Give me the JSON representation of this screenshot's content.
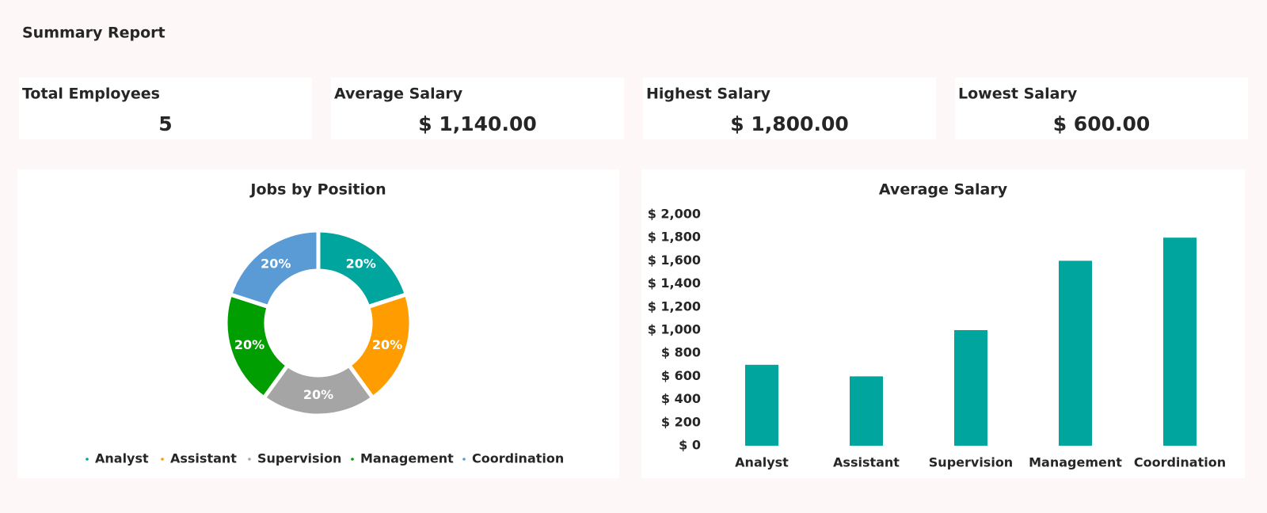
{
  "header": {
    "title": "Summary Report"
  },
  "kpis": [
    {
      "label": "Total Employees",
      "value": "5"
    },
    {
      "label": "Average Salary",
      "value": "$ 1,140.00"
    },
    {
      "label": "Highest Salary",
      "value": "$ 1,800.00"
    },
    {
      "label": "Lowest Salary",
      "value": "$ 600.00"
    }
  ],
  "chart_data": [
    {
      "type": "pie",
      "title": "Jobs by Position",
      "categories": [
        "Analyst",
        "Assistant",
        "Supervision",
        "Management",
        "Coordination"
      ],
      "values": [
        20,
        20,
        20,
        20,
        20
      ],
      "value_labels": [
        "20%",
        "20%",
        "20%",
        "20%",
        "20%"
      ],
      "colors": [
        "#00a59d",
        "#ff9c00",
        "#a5a5a5",
        "#009e00",
        "#5b9bd5"
      ],
      "legend": "bottom"
    },
    {
      "type": "bar",
      "title": "Average Salary",
      "categories": [
        "Analyst",
        "Assistant",
        "Supervision",
        "Management",
        "Coordination"
      ],
      "values": [
        700,
        600,
        1000,
        1600,
        1800
      ],
      "color": "#00a59d",
      "ylim": [
        0,
        2000
      ],
      "yticks": [
        {
          "value": 0,
          "label": "$ 0"
        },
        {
          "value": 200,
          "label": "$ 200"
        },
        {
          "value": 400,
          "label": "$ 400"
        },
        {
          "value": 600,
          "label": "$ 600"
        },
        {
          "value": 800,
          "label": "$ 800"
        },
        {
          "value": 1000,
          "label": "$ 1,000"
        },
        {
          "value": 1200,
          "label": "$ 1,200"
        },
        {
          "value": 1400,
          "label": "$ 1,400"
        },
        {
          "value": 1600,
          "label": "$ 1,600"
        },
        {
          "value": 1800,
          "label": "$ 1,800"
        },
        {
          "value": 2000,
          "label": "$ 2,000"
        }
      ],
      "grid": false
    }
  ]
}
